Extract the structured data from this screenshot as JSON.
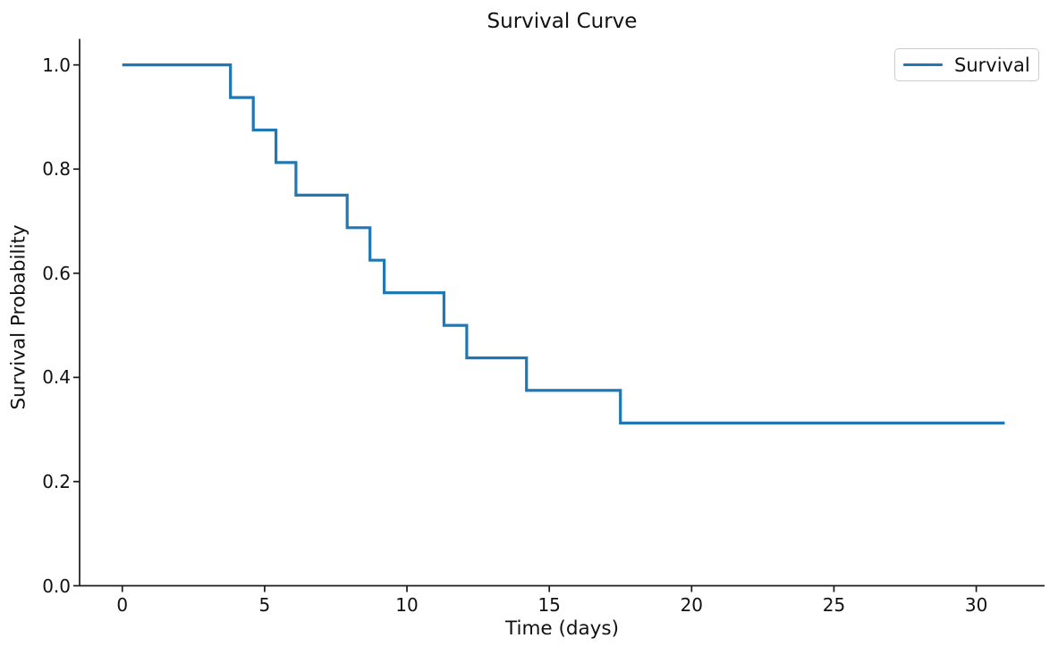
{
  "chart_data": {
    "type": "line",
    "subtype": "step-post",
    "title": "Survival Curve",
    "xlabel": "Time (days)",
    "ylabel": "Survival Probability",
    "xlim": [
      -1.5,
      32.4
    ],
    "ylim": [
      0,
      1.05
    ],
    "grid": false,
    "xticks": {
      "values": [
        0,
        5,
        10,
        15,
        20,
        25,
        30
      ],
      "labels": [
        "0",
        "5",
        "10",
        "15",
        "20",
        "25",
        "30"
      ]
    },
    "yticks": {
      "values": [
        0.0,
        0.2,
        0.4,
        0.6,
        0.8,
        1.0
      ],
      "labels": [
        "0.0",
        "0.2",
        "0.4",
        "0.6",
        "0.8",
        "1.0"
      ]
    },
    "legend": {
      "position": "upper right",
      "entries": [
        {
          "label": "Survival",
          "color": "#1f77b4"
        }
      ]
    },
    "series": [
      {
        "name": "Survival",
        "color": "#1f77b4",
        "line_width": 3.2,
        "step": "post",
        "x": [
          0,
          3.8,
          4.6,
          5.4,
          6.1,
          7.9,
          8.7,
          9.2,
          11.3,
          12.1,
          14.2,
          17.5,
          31.0
        ],
        "y": [
          1.0,
          0.9375,
          0.875,
          0.8125,
          0.75,
          0.6875,
          0.625,
          0.5625,
          0.5,
          0.4375,
          0.375,
          0.3125,
          0.3125
        ]
      }
    ],
    "colors": {
      "line": "#1f77b4",
      "spine": "#1a1a1a",
      "text": "#111111",
      "legend_border": "#cccccc",
      "background": "#ffffff"
    }
  }
}
